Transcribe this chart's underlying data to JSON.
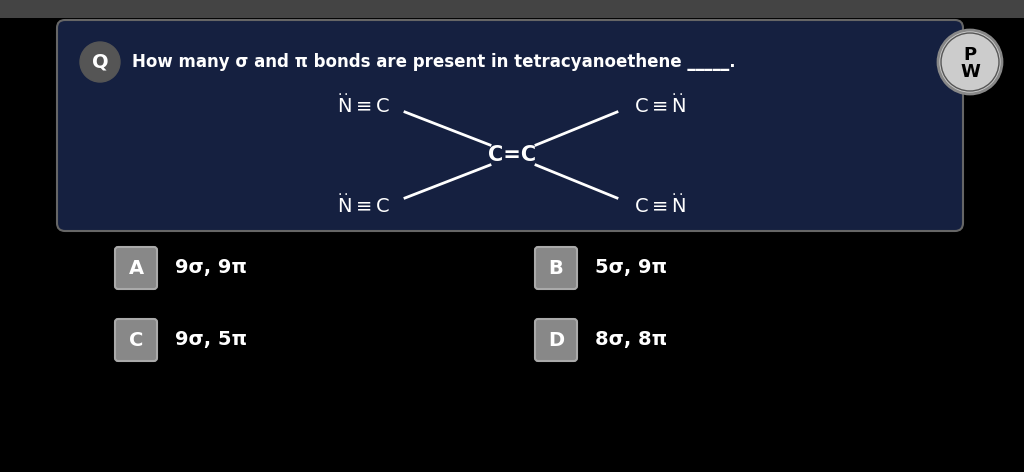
{
  "bg_color": "#000000",
  "question_box_color": "#152040",
  "question_box_edge": "#666666",
  "question_text": "How many σ and π bonds are present in tetracyanoethene _____.",
  "options": [
    {
      "label": "A",
      "text": "9σ, 9π"
    },
    {
      "label": "B",
      "text": "5σ, 9π"
    },
    {
      "label": "C",
      "text": "9σ, 5π"
    },
    {
      "label": "D",
      "text": "8σ, 8π"
    }
  ],
  "text_color": "#ffffff",
  "label_box_color": "#888888",
  "label_box_edge": "#aaaaaa",
  "pw_circle_color": "#cccccc",
  "struct_color": "#ffffff",
  "top_bar_color": "#444444"
}
